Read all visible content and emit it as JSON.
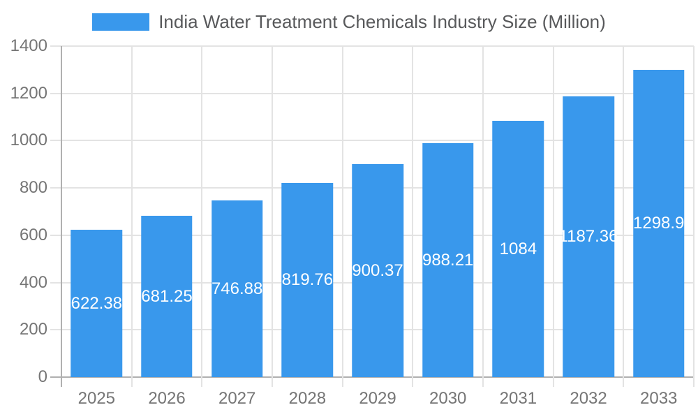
{
  "legend": {
    "label": "India Water Treatment Chemicals Industry Size (Million)"
  },
  "chart_data": {
    "type": "bar",
    "title": "India Water Treatment Chemicals Industry Size (Million)",
    "categories": [
      "2025",
      "2026",
      "2027",
      "2028",
      "2029",
      "2030",
      "2031",
      "2032",
      "2033"
    ],
    "values": [
      622.38,
      681.25,
      746.88,
      819.76,
      900.37,
      988.21,
      1084,
      1187.36,
      1298.9
    ],
    "bar_labels": [
      "622.38",
      "681.25",
      "746.88",
      "819.76",
      "900.37",
      "988.21",
      "1084",
      "1187.36",
      "1298.9"
    ],
    "xlabel": "",
    "ylabel": "",
    "ylim": [
      0,
      1400
    ],
    "yticks": [
      0,
      200,
      400,
      600,
      800,
      1000,
      1200,
      1400
    ],
    "grid": true,
    "legend_position": "top",
    "bar_label_position": "middle-inside",
    "colors": {
      "bar": "#3998ec",
      "gridline": "#e3e3e3",
      "axis_line": "#b0b0b0",
      "tick_label": "#757575",
      "legend_text": "#58595b",
      "bar_label_text": "#ffffff"
    }
  }
}
